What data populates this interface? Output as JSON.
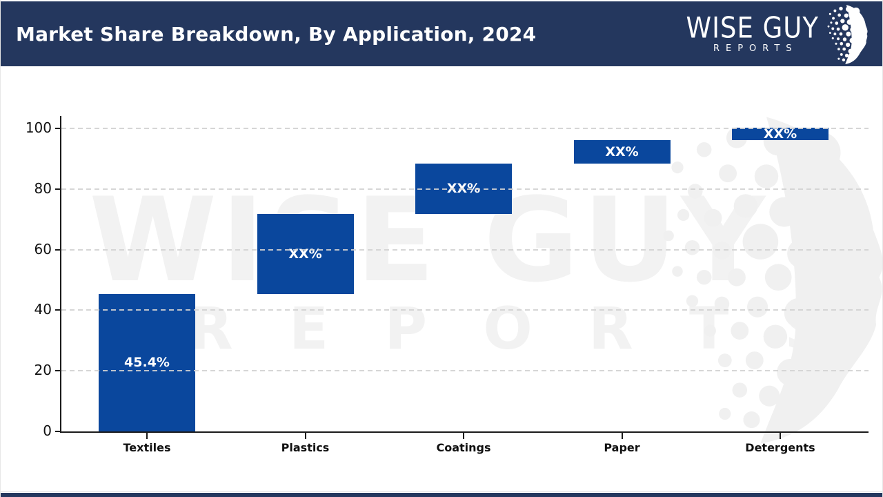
{
  "header": {
    "title": "Market Share Breakdown, By Application, 2024",
    "bg_color": "#24375e",
    "logo": {
      "line1": "WISE GUY",
      "line2": "REPORTS"
    }
  },
  "watermark": {
    "line1": "WISE GUY",
    "line2": "REPORTS"
  },
  "chart_data": {
    "type": "bar",
    "subtype": "waterfall",
    "title": "Market Share Breakdown, By Application, 2024",
    "categories": [
      "Textiles",
      "Plastics",
      "Coatings",
      "Paper",
      "Detergents"
    ],
    "segments": [
      {
        "category": "Textiles",
        "start": 0,
        "end": 45.4,
        "label": "45.4%"
      },
      {
        "category": "Plastics",
        "start": 45.4,
        "end": 71.8,
        "label": "XX%"
      },
      {
        "category": "Coatings",
        "start": 71.8,
        "end": 88.4,
        "label": "XX%"
      },
      {
        "category": "Paper",
        "start": 88.4,
        "end": 96.1,
        "label": "XX%"
      },
      {
        "category": "Detergents",
        "start": 96.1,
        "end": 100.3,
        "label": "XX%"
      }
    ],
    "yticks": [
      0,
      20,
      40,
      60,
      80,
      100
    ],
    "ylim": [
      0,
      104
    ],
    "xlabel": "",
    "ylabel": "",
    "grid": "horizontal-dashed",
    "legend": "none",
    "bar_color": "#0a479d",
    "bar_label_color": "#ffffff",
    "axis_color": "#1a1a1a"
  }
}
